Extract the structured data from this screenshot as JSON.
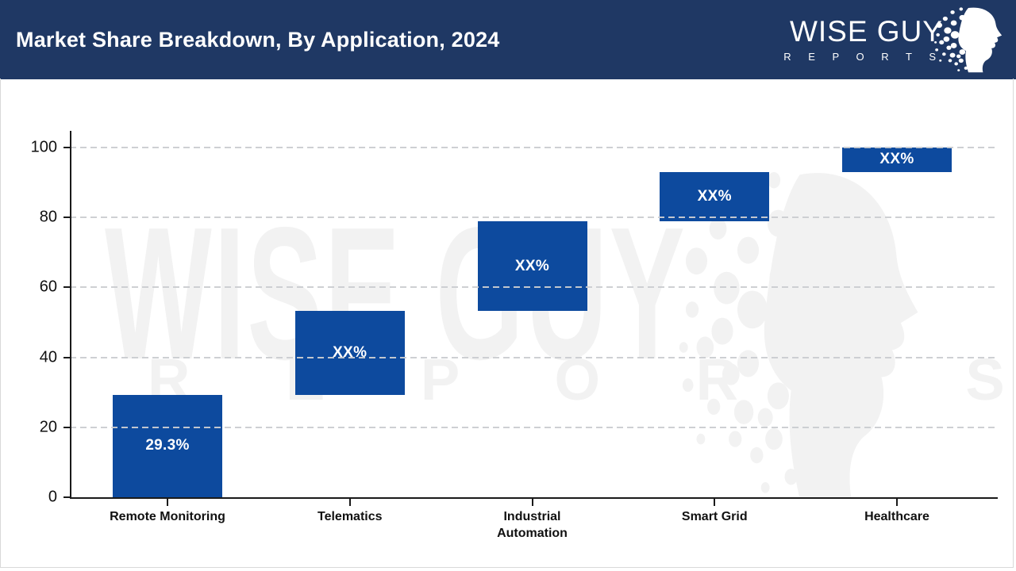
{
  "header": {
    "title": "Market Share Breakdown, By Application, 2024",
    "bg_color": "#1f3864",
    "logo": {
      "line1": "WISE GUY",
      "line2": "R E P O R T S"
    }
  },
  "watermark": {
    "line1": "WISE GUY",
    "line2": "R E P O R T S"
  },
  "chart_data": {
    "type": "bar",
    "subtype": "floating-waterfall",
    "title": "Market Share Breakdown, By Application, 2024",
    "categories": [
      "Remote Monitoring",
      "Telematics",
      "Industrial\nAutomation",
      "Smart Grid",
      "Healthcare"
    ],
    "bars": [
      {
        "category": "Remote Monitoring",
        "start": 0,
        "end": 29.3,
        "label": "29.3%"
      },
      {
        "category": "Telematics",
        "start": 29.3,
        "end": 53.2,
        "label": "XX%"
      },
      {
        "category": "Industrial\nAutomation",
        "start": 53.2,
        "end": 78.9,
        "label": "XX%"
      },
      {
        "category": "Smart Grid",
        "start": 78.9,
        "end": 93.0,
        "label": "XX%"
      },
      {
        "category": "Healthcare",
        "start": 93.0,
        "end": 100.0,
        "label": "XX%"
      }
    ],
    "xlabel": "",
    "ylabel": "",
    "ylim": [
      0,
      100
    ],
    "yticks": [
      0,
      20,
      40,
      60,
      80,
      100
    ],
    "grid": "horizontal-dashed",
    "legend": "none",
    "bar_color": "#0d4a9e",
    "bar_label_color": "#ffffff",
    "axis_color": "#1a1a1a",
    "gridline_color": "#cccccc"
  }
}
